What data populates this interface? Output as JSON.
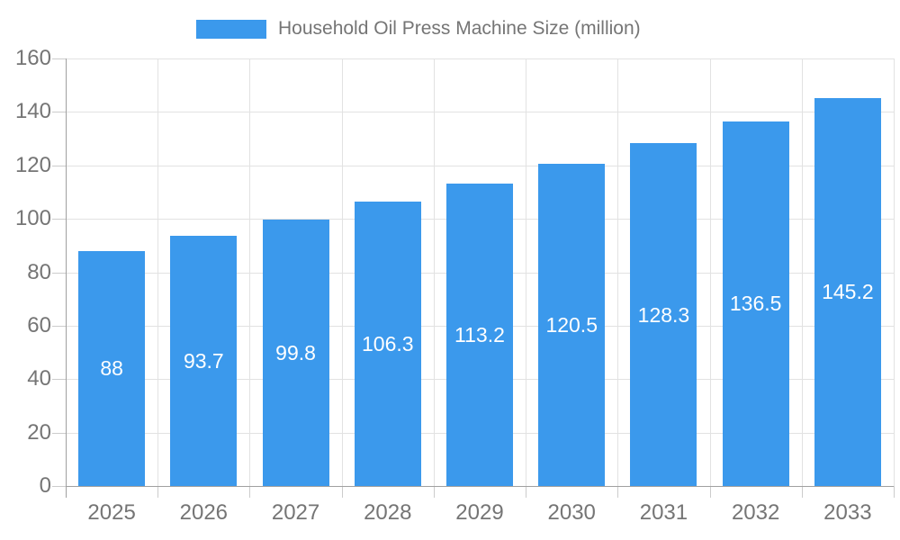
{
  "chart_data": {
    "type": "bar",
    "title": "Household Oil Press Machine Size (million)",
    "categories": [
      "2025",
      "2026",
      "2027",
      "2028",
      "2029",
      "2030",
      "2031",
      "2032",
      "2033"
    ],
    "values": [
      88,
      93.7,
      99.8,
      106.3,
      113.2,
      120.5,
      128.3,
      136.5,
      145.2
    ],
    "xlabel": "",
    "ylabel": "",
    "ylim": [
      0,
      160
    ],
    "yticks": [
      0,
      20,
      40,
      60,
      80,
      100,
      120,
      140,
      160
    ],
    "grid": true,
    "legend_position": "top-center",
    "bar_labels_inside": true
  },
  "legend": {
    "label": "Household Oil Press Machine Size (million)"
  },
  "colors": {
    "bar": "#3b99ec",
    "axis_label": "#757575",
    "grid_line": "#e2e2e2",
    "tick": "#cccccc",
    "axis_line": "#a0a0a0",
    "bar_label": "#ffffff",
    "background": "#ffffff"
  }
}
